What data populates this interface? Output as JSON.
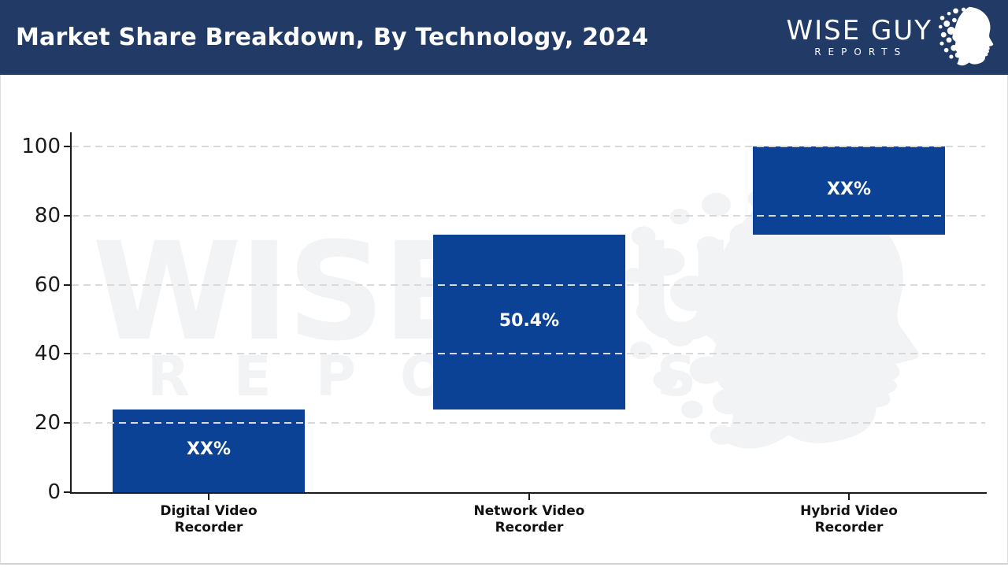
{
  "header": {
    "title": "Market Share Breakdown, By Technology, 2024",
    "logo": {
      "wordmark": "WISE GUY",
      "subtext": "REPORTS"
    }
  },
  "watermark": {
    "wordmark": "WISE GUY",
    "subtext": "REPORTS"
  },
  "colors": {
    "header_bg": "#223A66",
    "bar": "#0B4295",
    "bar_label": "#FFFFFF",
    "watermark": "#F2F3F5",
    "gridline": "#D9D9D9",
    "axis": "#1A1A1A"
  },
  "chart_data": {
    "type": "bar",
    "variant": "floating-waterfall",
    "title": "Market Share Breakdown, By Technology, 2024",
    "categories": [
      {
        "line1": "Digital Video",
        "line2": "Recorder"
      },
      {
        "line1": "Network Video",
        "line2": "Recorder"
      },
      {
        "line1": "Hybrid Video",
        "line2": "Recorder"
      }
    ],
    "segments": [
      {
        "start": 0,
        "end": 24,
        "label": "XX%"
      },
      {
        "start": 24,
        "end": 74.4,
        "label": "50.4%"
      },
      {
        "start": 74.4,
        "end": 100,
        "label": "XX%"
      }
    ],
    "ylabel": "",
    "xlabel": "",
    "ylim": [
      0,
      100
    ],
    "yticks": [
      0,
      20,
      40,
      60,
      80,
      100
    ],
    "grid": "horizontal-dashed",
    "legend": "none"
  }
}
